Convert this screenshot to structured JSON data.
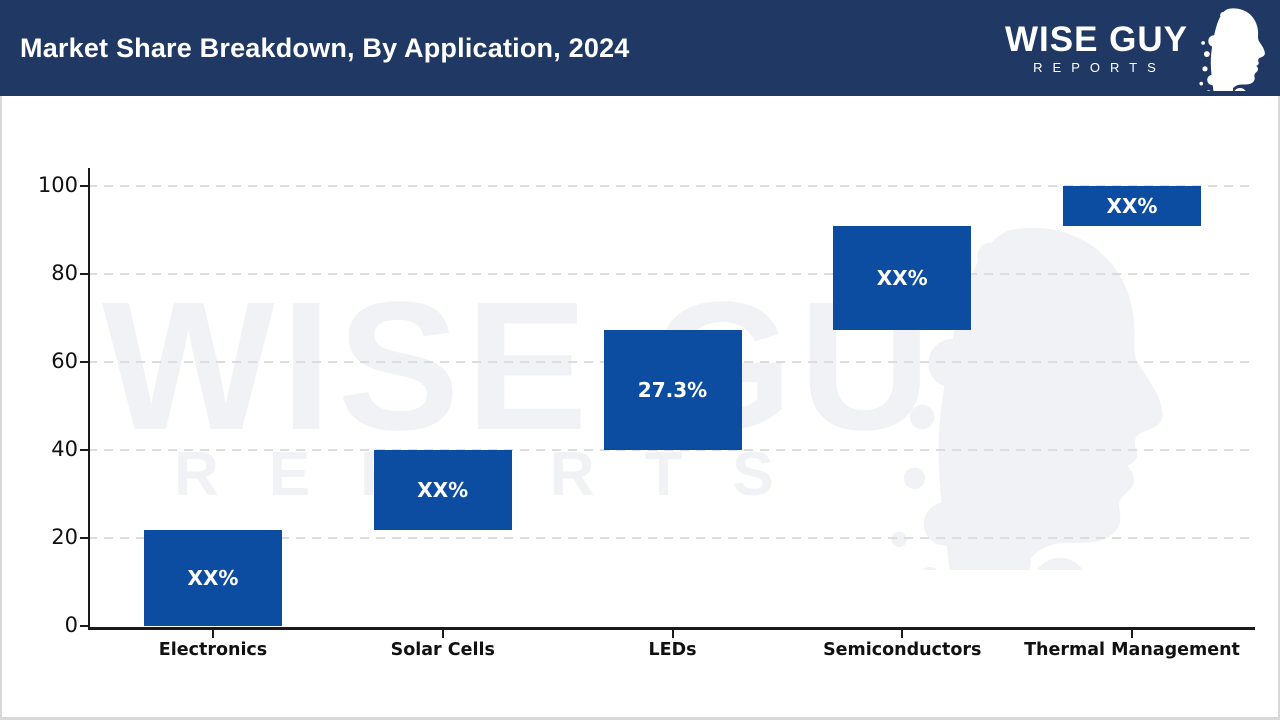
{
  "header": {
    "title": "Market Share Breakdown, By Application, 2024",
    "logo": {
      "line1": "WISE GUY",
      "line2": "REPORTS"
    }
  },
  "watermark": {
    "line1": "WISE GUY",
    "line2": "REPORTS"
  },
  "colors": {
    "header_bg": "#1f3864",
    "bar": "#0c4da2",
    "grid": "#dcdcdc",
    "axis": "#1a1a1a",
    "watermark": "#f1f2f5"
  },
  "chart_data": {
    "type": "bar",
    "subtype": "waterfall-floating-segments",
    "title": "Market Share Breakdown, By Application, 2024",
    "categories": [
      "Electronics",
      "Solar Cells",
      "LEDs",
      "Semiconductors",
      "Thermal Management"
    ],
    "segments": [
      {
        "category": "Electronics",
        "start": 0,
        "end": 21.8,
        "label": "XX%"
      },
      {
        "category": "Solar Cells",
        "start": 21.8,
        "end": 40.0,
        "label": "XX%"
      },
      {
        "category": "LEDs",
        "start": 40.0,
        "end": 67.3,
        "label": "27.3%"
      },
      {
        "category": "Semiconductors",
        "start": 67.3,
        "end": 90.9,
        "label": "XX%"
      },
      {
        "category": "Thermal Management",
        "start": 90.9,
        "end": 100,
        "label": "XX%"
      }
    ],
    "xlabel": "",
    "ylabel": "",
    "ylim": [
      0,
      100
    ],
    "yticks": [
      0,
      20,
      40,
      60,
      80,
      100
    ],
    "grid": "horizontal-dashed",
    "legend": "none",
    "bar_color": "#0c4da2",
    "bar_label_color": "#ffffff"
  }
}
